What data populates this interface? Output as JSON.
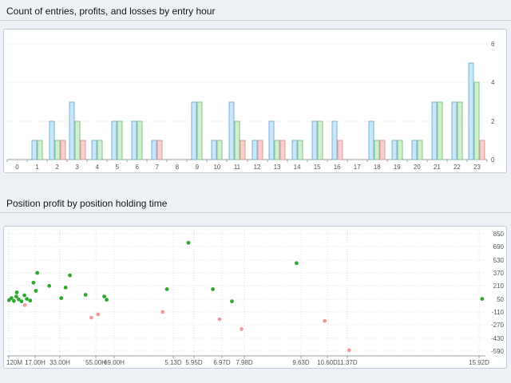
{
  "page": {
    "background": "#edf1f5"
  },
  "chart_data": [
    {
      "id": "entries-by-hour",
      "type": "bar",
      "title": "Count of entries, profits, and losses by entry hour",
      "xlabel": "entry hour",
      "ylabel": "count",
      "yaxis_position": "right",
      "grid": true,
      "legend": "none",
      "ylim": [
        0,
        6.5
      ],
      "yticks": [
        0,
        2,
        4,
        6
      ],
      "categories": [
        "0",
        "1",
        "2",
        "3",
        "4",
        "5",
        "6",
        "7",
        "8",
        "9",
        "10",
        "11",
        "12",
        "13",
        "14",
        "15",
        "16",
        "17",
        "18",
        "19",
        "20",
        "21",
        "22",
        "23"
      ],
      "series": [
        {
          "name": "entries",
          "fill": "#cbe6f8",
          "stroke": "#7ab3d9",
          "values": [
            0,
            1,
            2,
            3,
            1,
            2,
            2,
            1,
            0,
            3,
            1,
            3,
            1,
            2,
            1,
            2,
            2,
            0,
            2,
            1,
            1,
            3,
            3,
            5
          ]
        },
        {
          "name": "profits",
          "fill": "#d2eed2",
          "stroke": "#84c784",
          "values": [
            0,
            1,
            1,
            2,
            1,
            2,
            2,
            0,
            0,
            3,
            1,
            2,
            0,
            1,
            1,
            2,
            0,
            0,
            1,
            1,
            1,
            3,
            3,
            4
          ]
        },
        {
          "name": "losses",
          "fill": "#f7cfcf",
          "stroke": "#e09b9b",
          "values": [
            0,
            0,
            1,
            1,
            0,
            0,
            0,
            1,
            0,
            0,
            0,
            1,
            1,
            1,
            0,
            0,
            1,
            0,
            1,
            0,
            0,
            0,
            0,
            1
          ]
        }
      ]
    },
    {
      "id": "profit-by-holding-time",
      "type": "scatter",
      "title": "Position profit by position holding time",
      "xlabel": "position holding time",
      "ylabel": "profit",
      "yaxis_position": "right",
      "grid": true,
      "legend": "none",
      "ylim": [
        900,
        -650
      ],
      "yticks": [
        850,
        690,
        530,
        370,
        210,
        50,
        -110,
        -270,
        -430,
        -590
      ],
      "xticks": [
        {
          "label": "120M",
          "pct": 0.3
        },
        {
          "label": "17.00H",
          "pct": 5.8
        },
        {
          "label": "33.00H",
          "pct": 11.0
        },
        {
          "label": "55.00H",
          "pct": 18.6
        },
        {
          "label": "69.00H",
          "pct": 22.4
        },
        {
          "label": "5.13D",
          "pct": 34.7
        },
        {
          "label": "5.95D",
          "pct": 39.0
        },
        {
          "label": "6.97D",
          "pct": 44.9
        },
        {
          "label": "7.98D",
          "pct": 49.5
        },
        {
          "label": "9.63D",
          "pct": 61.4
        },
        {
          "label": "10.60D",
          "pct": 67.0
        },
        {
          "label": "11.37D",
          "pct": 71.2
        },
        {
          "label": "15.92D",
          "pct": 98.6
        }
      ],
      "series": [
        {
          "name": "profit",
          "color": "#2fa82f",
          "points": [
            {
              "x_pct": 0.4,
              "y": 35
            },
            {
              "x_pct": 0.9,
              "y": 60
            },
            {
              "x_pct": 1.4,
              "y": 25
            },
            {
              "x_pct": 1.9,
              "y": 80
            },
            {
              "x_pct": 2.4,
              "y": 45
            },
            {
              "x_pct": 3.0,
              "y": 20
            },
            {
              "x_pct": 3.6,
              "y": 95
            },
            {
              "x_pct": 4.1,
              "y": 50
            },
            {
              "x_pct": 4.8,
              "y": 30
            },
            {
              "x_pct": 2.0,
              "y": 130
            },
            {
              "x_pct": 5.5,
              "y": 250
            },
            {
              "x_pct": 6.3,
              "y": 370
            },
            {
              "x_pct": 6.0,
              "y": 150
            },
            {
              "x_pct": 8.8,
              "y": 210
            },
            {
              "x_pct": 11.3,
              "y": 60
            },
            {
              "x_pct": 12.2,
              "y": 190
            },
            {
              "x_pct": 13.1,
              "y": 340
            },
            {
              "x_pct": 16.4,
              "y": 100
            },
            {
              "x_pct": 20.3,
              "y": 80
            },
            {
              "x_pct": 20.8,
              "y": 40
            },
            {
              "x_pct": 33.4,
              "y": 170
            },
            {
              "x_pct": 37.9,
              "y": 740
            },
            {
              "x_pct": 43.0,
              "y": 170
            },
            {
              "x_pct": 47.0,
              "y": 20
            },
            {
              "x_pct": 60.5,
              "y": 490
            },
            {
              "x_pct": 99.3,
              "y": 50
            }
          ]
        },
        {
          "name": "loss",
          "color": "#f09c9c",
          "points": [
            {
              "x_pct": 3.7,
              "y": -25
            },
            {
              "x_pct": 17.6,
              "y": -180
            },
            {
              "x_pct": 19.0,
              "y": -140
            },
            {
              "x_pct": 32.5,
              "y": -110
            },
            {
              "x_pct": 44.4,
              "y": -200
            },
            {
              "x_pct": 49.0,
              "y": -320
            },
            {
              "x_pct": 66.4,
              "y": -220
            },
            {
              "x_pct": 71.5,
              "y": -580
            }
          ]
        }
      ]
    }
  ]
}
